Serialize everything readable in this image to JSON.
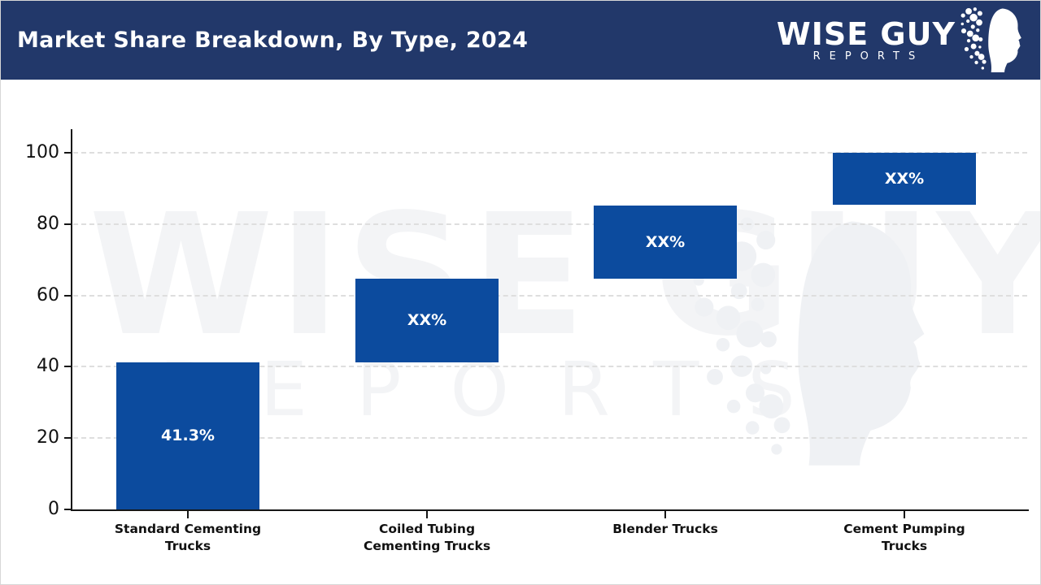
{
  "header": {
    "title": "Market Share Breakdown, By Type, 2024",
    "logo": {
      "line1": "WISE GUY",
      "line2": "REPORTS"
    }
  },
  "watermark": {
    "line1": "WISE GUY",
    "line2": "REPORTS"
  },
  "colors": {
    "header_bg": "#22386a",
    "bar": "#0c4b9e",
    "bar_label": "#ffffff",
    "axis": "#161616",
    "grid": "#dedede",
    "watermark": "#f3f4f6"
  },
  "chart_data": {
    "type": "bar",
    "subtype": "waterfall",
    "title": "Market Share Breakdown, By Type, 2024",
    "xlabel": "",
    "ylabel": "",
    "ylim": [
      0,
      100
    ],
    "yticks": [
      0,
      20,
      40,
      60,
      80,
      100
    ],
    "grid": "horizontal dashed",
    "legend": "none",
    "categories": [
      "Standard Cementing Trucks",
      "Coiled Tubing Cementing Trucks",
      "Blender Trucks",
      "Cement Pumping Trucks"
    ],
    "category_lines": [
      [
        "Standard Cementing",
        "Trucks"
      ],
      [
        "Coiled Tubing",
        "Cementing Trucks"
      ],
      [
        "Blender Trucks"
      ],
      [
        "Cement Pumping",
        "Trucks"
      ]
    ],
    "bars": [
      {
        "category": "Standard Cementing Trucks",
        "start": 0,
        "end": 41.3,
        "label": "41.3%"
      },
      {
        "category": "Coiled Tubing Cementing Trucks",
        "start": 41.3,
        "end": 64.7,
        "label": "XX%"
      },
      {
        "category": "Blender Trucks",
        "start": 64.7,
        "end": 85.3,
        "label": "XX%"
      },
      {
        "category": "Cement Pumping Trucks",
        "start": 85.4,
        "end": 100,
        "label": "XX%"
      }
    ]
  }
}
